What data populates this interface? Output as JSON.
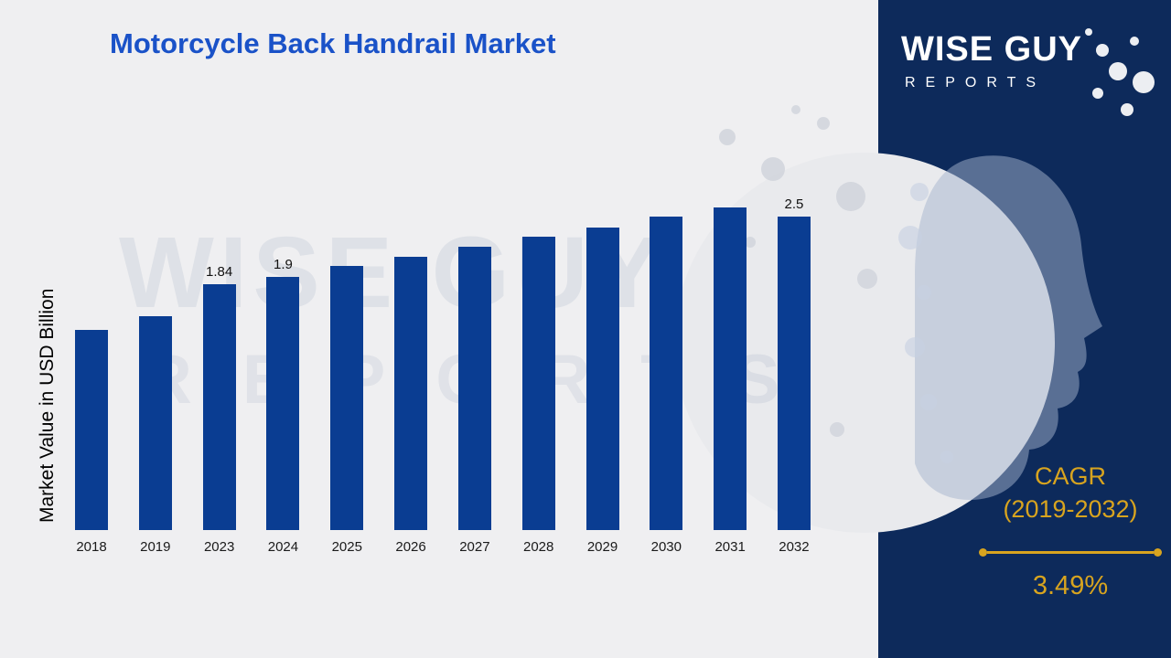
{
  "title": "Motorcycle Back Handrail Market",
  "ylabel": "Market Value in USD Billion",
  "watermark": {
    "line1": "WISE GUY",
    "line2": "REPORTS"
  },
  "logo": {
    "line1": "WISE GUY",
    "line2": "REPORTS"
  },
  "cagr": {
    "label": "CAGR",
    "range": "(2019-2032)",
    "value": "3.49%"
  },
  "colors": {
    "bar": "#0a3d92",
    "title": "#1a52c8",
    "panel": "#0d2a5b",
    "gold": "#d8a41f",
    "background": "#efeff1"
  },
  "chart_data": {
    "type": "bar",
    "title": "Motorcycle Back Handrail Market",
    "xlabel": "",
    "ylabel": "Market Value in USD Billion",
    "categories": [
      "2018",
      "2019",
      "2023",
      "2024",
      "2025",
      "2026",
      "2027",
      "2028",
      "2029",
      "2030",
      "2031",
      "2032"
    ],
    "values": [
      1.5,
      1.6,
      1.84,
      1.9,
      1.98,
      2.05,
      2.12,
      2.2,
      2.27,
      2.35,
      2.42,
      2.5
    ],
    "data_labels": {
      "2023": "1.84",
      "2024": "1.9",
      "2032": "2.5"
    },
    "ylim": [
      0,
      2.7
    ],
    "grid": false,
    "legend": false,
    "bar_color": "#0a3d92"
  }
}
